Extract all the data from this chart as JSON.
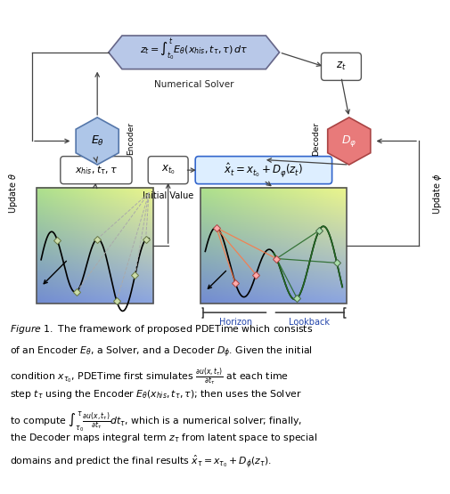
{
  "fig_width": 5.06,
  "fig_height": 5.55,
  "dpi": 100,
  "bg_color": "#ffffff",
  "solver_box_color": "#b8c8e8",
  "encoder_hex_color": "#aec6e8",
  "decoder_hex_color": "#e87a7a",
  "xhat_box_color": "#ddeeff",
  "xhat_edge_color": "#3366cc",
  "arrow_color": "#444444",
  "gradient_tl": [
    0.68,
    0.88,
    0.55
  ],
  "gradient_tr": [
    0.92,
    0.96,
    0.55
  ],
  "gradient_bl": [
    0.45,
    0.55,
    0.82
  ],
  "gradient_br": [
    0.55,
    0.65,
    0.88
  ]
}
